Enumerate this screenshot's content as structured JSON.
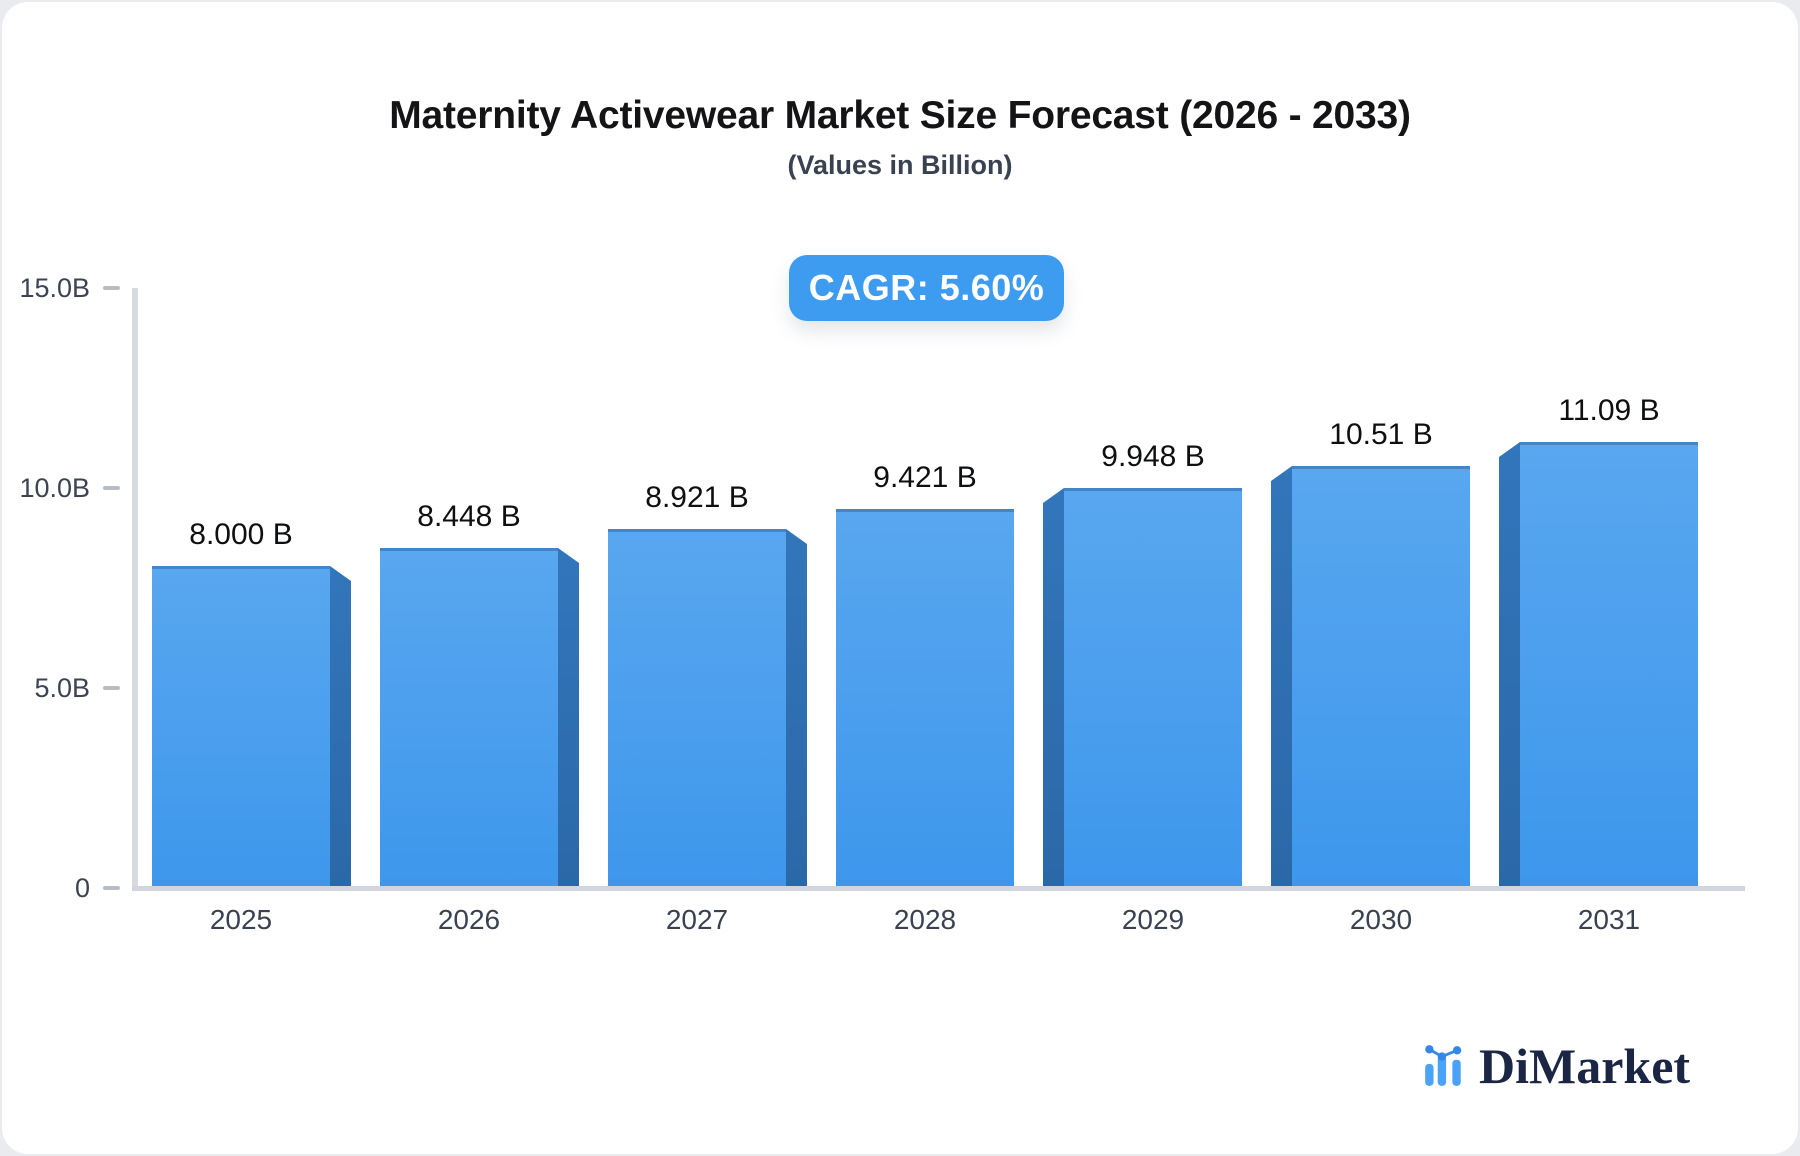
{
  "chart_data": {
    "type": "bar",
    "title": "Maternity Activewear Market Size Forecast (2026 - 2033)",
    "subtitle": "(Values in Billion)",
    "cagr_label": "CAGR: 5.60%",
    "categories": [
      "2025",
      "2026",
      "2027",
      "2028",
      "2029",
      "2030",
      "2031"
    ],
    "values": [
      8.0,
      8.448,
      8.921,
      9.421,
      9.948,
      10.51,
      11.09
    ],
    "value_labels": [
      "8.000 B",
      "8.448 B",
      "8.921 B",
      "9.421 B",
      "9.948 B",
      "10.51 B",
      "11.09 B"
    ],
    "ylim": [
      0,
      15
    ],
    "yticks": [
      {
        "label": "15.0B",
        "value": 15
      },
      {
        "label": "10.0B",
        "value": 10
      },
      {
        "label": "5.0B",
        "value": 5
      },
      {
        "label": "0",
        "value": 0
      }
    ],
    "grid": false,
    "legend": false
  },
  "colors": {
    "badge_bg": "#3d9bf0",
    "bar_face_top": "#58a7ef",
    "bar_face_bottom": "#3e97ec",
    "bar_face_edge": "#4286c9",
    "bar_side_top": "#3276bb",
    "bar_side_bottom": "#2b68a8",
    "axis": "#d7dae0",
    "logo_navy": "#1b2644",
    "logo_blue": "#4aa3f6",
    "logo_dot_blue": "#3487e6"
  },
  "logo": {
    "brand": "DiMarket",
    "icon": "bar-chart-sparkline-icon"
  }
}
